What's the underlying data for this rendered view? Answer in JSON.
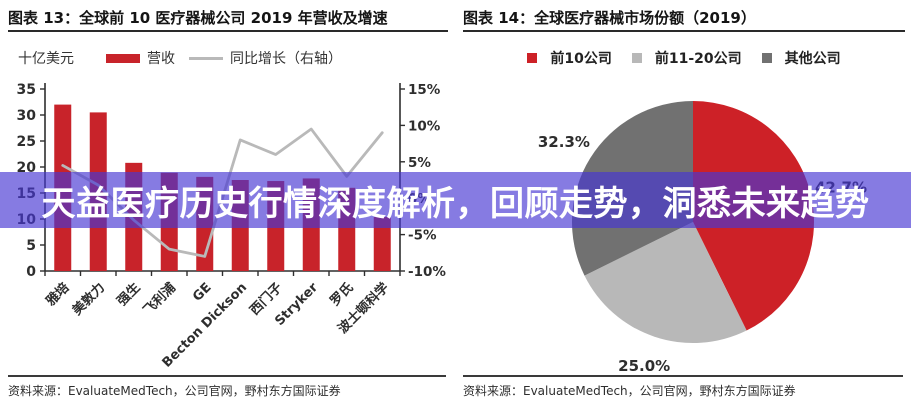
{
  "banner": {
    "text": "天益医疗历史行情深度解析，回顾走势，洞悉未来趋势",
    "bg_color": "rgba(72,54,211,0.66)",
    "text_color": "#ffffff"
  },
  "left_panel": {
    "title": "图表 13：全球前 10 医疗器械公司 2019 年营收及增速",
    "unit_label": "十亿美元",
    "source": "资料来源：EvaluateMedTech，公司官网，野村东方国际证券"
  },
  "right_panel": {
    "title": "图表 14：全球医疗器械市场份额（2019）",
    "source": "资料来源：EvaluateMedTech，公司官网，野村东方国际证券"
  },
  "chart_data": [
    {
      "type": "bar",
      "title": "全球前 10 医疗器械公司 2019 年营收及增速",
      "categories": [
        "雅培",
        "美敦力",
        "强生",
        "飞利浦",
        "GE",
        "Becton Dickson",
        "西门子",
        "Stryker",
        "罗氏",
        "波士顿科学"
      ],
      "series": [
        {
          "name": "营收",
          "type": "bar",
          "axis": "left",
          "unit": "十亿美元",
          "color": "#c8232a",
          "values": [
            32.0,
            30.5,
            20.8,
            18.9,
            18.1,
            17.5,
            17.3,
            17.8,
            16.0,
            10.4
          ]
        },
        {
          "name": "同比增长（右轴）",
          "type": "line",
          "axis": "right",
          "unit": "%",
          "color": "#b9b9b9",
          "values": [
            4.5,
            1.8,
            -3.0,
            -7.0,
            -8.0,
            8.0,
            6.0,
            9.5,
            3.0,
            9.0
          ]
        }
      ],
      "left_axis": {
        "ticks": [
          0,
          5,
          10,
          15,
          20,
          25,
          30,
          35
        ],
        "range": [
          0,
          35
        ]
      },
      "right_axis": {
        "ticks": [
          "15%",
          "10%",
          "5%",
          "0%",
          "-5%",
          "-10%"
        ],
        "tick_values": [
          15,
          10,
          5,
          0,
          -5,
          -10
        ],
        "range": [
          -10,
          15
        ]
      },
      "grid": false,
      "legend_position": "top"
    },
    {
      "type": "pie",
      "title": "全球医疗器械市场份额（2019）",
      "slices": [
        {
          "label": "前10公司",
          "value": 42.7,
          "display": "42.7%",
          "color": "#cd2127"
        },
        {
          "label": "前11-20公司",
          "value": 25.0,
          "display": "25.0%",
          "color": "#b8b8b8"
        },
        {
          "label": "其他公司",
          "value": 32.3,
          "display": "32.3%",
          "color": "#717171"
        }
      ],
      "start_angle_deg": 0,
      "direction": "clockwise",
      "legend_position": "top"
    }
  ]
}
